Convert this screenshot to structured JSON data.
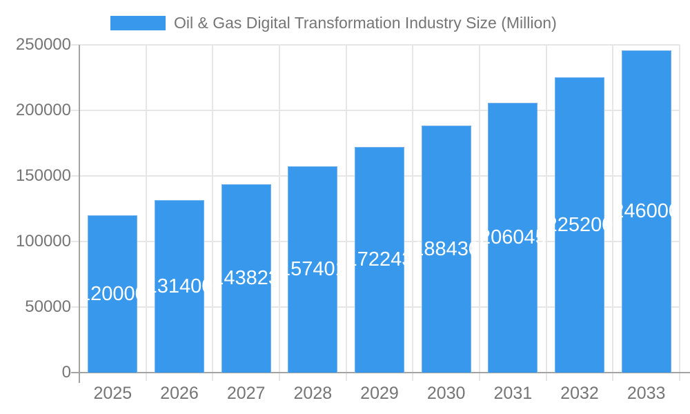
{
  "legend": {
    "swatch_color": "#3898ec"
  },
  "colors": {
    "bar_fill": "#3898ec",
    "bar_edge": "#74b3f1",
    "bar_label_text": "#ffffff",
    "grid_line": "#e6e6e6",
    "axis_line": "#a3a3a3",
    "axis_text": "#757575",
    "background": "#ffffff"
  },
  "chart_data": {
    "type": "bar",
    "title": "Oil & Gas Digital Transformation Industry Size (Million)",
    "categories": [
      "2025",
      "2026",
      "2027",
      "2028",
      "2029",
      "2030",
      "2031",
      "2032",
      "2033"
    ],
    "values": [
      120000,
      131400,
      143823,
      157401,
      172243,
      188430,
      206045,
      225200,
      246000
    ],
    "xlabel": "",
    "ylabel": "",
    "ylim": [
      0,
      250000
    ],
    "yticks": [
      0,
      50000,
      100000,
      150000,
      200000,
      250000
    ],
    "grid": true,
    "legend_position": "top",
    "value_labels": "inside-center-white"
  }
}
